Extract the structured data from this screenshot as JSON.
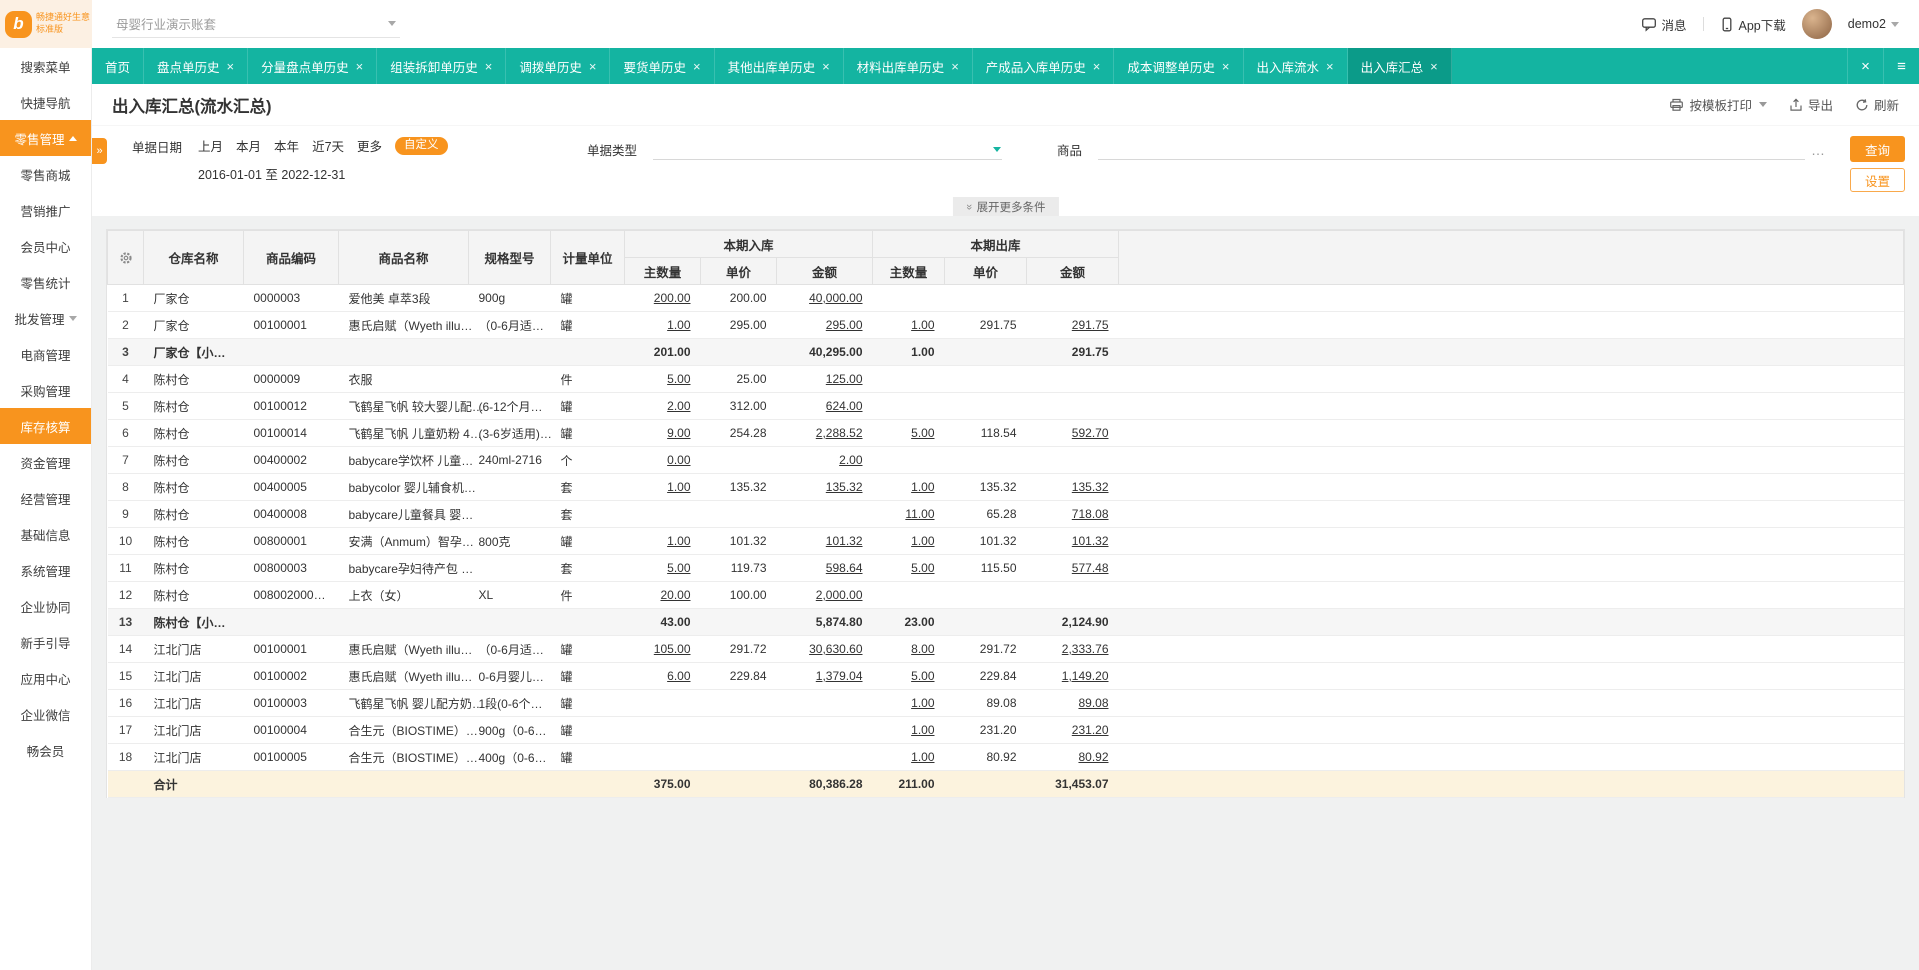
{
  "topbar": {
    "logo_glyph": "b",
    "logo_title": "畅捷通好生意",
    "logo_edition": "标准版",
    "account": "母婴行业演示账套",
    "messages": "消息",
    "app_download": "App下载",
    "user": "demo2"
  },
  "tabbar": {
    "close_all_icon": "×",
    "menu_icon": "≡",
    "tabs": [
      {
        "label": "首页",
        "closable": false,
        "active": false
      },
      {
        "label": "盘点单历史",
        "closable": true,
        "active": false
      },
      {
        "label": "分量盘点单历史",
        "closable": true,
        "active": false
      },
      {
        "label": "组装拆卸单历史",
        "closable": true,
        "active": false
      },
      {
        "label": "调拨单历史",
        "closable": true,
        "active": false
      },
      {
        "label": "要货单历史",
        "closable": true,
        "active": false
      },
      {
        "label": "其他出库单历史",
        "closable": true,
        "active": false
      },
      {
        "label": "材料出库单历史",
        "closable": true,
        "active": false
      },
      {
        "label": "产成品入库单历史",
        "closable": true,
        "active": false
      },
      {
        "label": "成本调整单历史",
        "closable": true,
        "active": false
      },
      {
        "label": "出入库流水",
        "closable": true,
        "active": false
      },
      {
        "label": "出入库汇总",
        "closable": true,
        "active": true
      }
    ]
  },
  "sidebar": {
    "items": [
      {
        "label": "搜索菜单",
        "type": "plain"
      },
      {
        "label": "快捷导航",
        "type": "plain"
      },
      {
        "label": "零售管理",
        "type": "group-open"
      },
      {
        "label": "零售商城",
        "type": "sub"
      },
      {
        "label": "营销推广",
        "type": "sub"
      },
      {
        "label": "会员中心",
        "type": "sub"
      },
      {
        "label": "零售统计",
        "type": "sub"
      },
      {
        "label": "批发管理",
        "type": "group-closed"
      },
      {
        "label": "电商管理",
        "type": "plain"
      },
      {
        "label": "采购管理",
        "type": "plain"
      },
      {
        "label": "库存核算",
        "type": "active"
      },
      {
        "label": "资金管理",
        "type": "plain"
      },
      {
        "label": "经营管理",
        "type": "plain"
      },
      {
        "label": "基础信息",
        "type": "plain"
      },
      {
        "label": "系统管理",
        "type": "plain"
      },
      {
        "label": "企业协同",
        "type": "plain"
      },
      {
        "label": "新手引导",
        "type": "plain"
      },
      {
        "label": "应用中心",
        "type": "plain"
      },
      {
        "label": "企业微信",
        "type": "plain"
      },
      {
        "label": "畅会员",
        "type": "plain"
      }
    ]
  },
  "page": {
    "title": "出入库汇总(流水汇总)",
    "actions": {
      "print": "按模板打印",
      "export": "导出",
      "refresh": "刷新"
    }
  },
  "filters": {
    "collapse_icon": "»",
    "date_label": "单据日期",
    "quick_ranges": [
      "上月",
      "本月",
      "本年",
      "近7天",
      "更多"
    ],
    "custom_badge": "自定义",
    "date_range": "2016-01-01 至 2022-12-31",
    "doc_type_label": "单据类型",
    "product_label": "商品",
    "product_more": "…",
    "search_button": "查询",
    "settings_button": "设置",
    "expand_icon": "»",
    "expand_more": "展开更多条件"
  },
  "table": {
    "columns": [
      "仓库名称",
      "商品编码",
      "商品名称",
      "规格型号",
      "计量单位"
    ],
    "group_in": "本期入库",
    "group_out": "本期出库",
    "sub_columns": [
      "主数量",
      "单价",
      "金额"
    ],
    "rows": [
      {
        "num": "1",
        "warehouse": "厂家仓",
        "code": "0000003",
        "name": "爱他美 卓萃3段",
        "spec": "900g",
        "unit": "罐",
        "in_qty": "200.00",
        "in_price": "200.00",
        "in_amt": "40,000.00",
        "out_qty": "",
        "out_price": "",
        "out_amt": "",
        "type": "data"
      },
      {
        "num": "2",
        "warehouse": "厂家仓",
        "code": "00100001",
        "name": "惠氏启赋（Wyeth illu…",
        "spec": "（0-6月适…",
        "unit": "罐",
        "in_qty": "1.00",
        "in_price": "295.00",
        "in_amt": "295.00",
        "out_qty": "1.00",
        "out_price": "291.75",
        "out_amt": "291.75",
        "type": "data"
      },
      {
        "num": "3",
        "warehouse": "厂家仓【小…",
        "code": "",
        "name": "",
        "spec": "",
        "unit": "",
        "in_qty": "201.00",
        "in_price": "",
        "in_amt": "40,295.00",
        "out_qty": "1.00",
        "out_price": "",
        "out_amt": "291.75",
        "type": "subtotal"
      },
      {
        "num": "4",
        "warehouse": "陈村仓",
        "code": "0000009",
        "name": "衣服",
        "spec": "",
        "unit": "件",
        "in_qty": "5.00",
        "in_price": "25.00",
        "in_amt": "125.00",
        "out_qty": "",
        "out_price": "",
        "out_amt": "",
        "type": "data"
      },
      {
        "num": "5",
        "warehouse": "陈村仓",
        "code": "00100012",
        "name": "飞鹤星飞帆 较大婴儿配…",
        "spec": "(6-12个月…",
        "unit": "罐",
        "in_qty": "2.00",
        "in_price": "312.00",
        "in_amt": "624.00",
        "out_qty": "",
        "out_price": "",
        "out_amt": "",
        "type": "data"
      },
      {
        "num": "6",
        "warehouse": "陈村仓",
        "code": "00100014",
        "name": "飞鹤星飞帆 儿童奶粉 4…",
        "spec": "(3-6岁适用)…",
        "unit": "罐",
        "in_qty": "9.00",
        "in_price": "254.28",
        "in_amt": "2,288.52",
        "out_qty": "5.00",
        "out_price": "118.54",
        "out_amt": "592.70",
        "type": "data"
      },
      {
        "num": "7",
        "warehouse": "陈村仓",
        "code": "00400002",
        "name": "babycare学饮杯 儿童…",
        "spec": "240ml-2716",
        "unit": "个",
        "in_qty": "0.00",
        "in_price": "",
        "in_amt": "2.00",
        "out_qty": "",
        "out_price": "",
        "out_amt": "",
        "type": "data"
      },
      {
        "num": "8",
        "warehouse": "陈村仓",
        "code": "00400005",
        "name": "babycolor 婴儿辅食机…",
        "spec": "",
        "unit": "套",
        "in_qty": "1.00",
        "in_price": "135.32",
        "in_amt": "135.32",
        "out_qty": "1.00",
        "out_price": "135.32",
        "out_amt": "135.32",
        "type": "data"
      },
      {
        "num": "9",
        "warehouse": "陈村仓",
        "code": "00400008",
        "name": "babycare儿童餐具 婴…",
        "spec": "",
        "unit": "套",
        "in_qty": "",
        "in_price": "",
        "in_amt": "",
        "out_qty": "11.00",
        "out_price": "65.28",
        "out_amt": "718.08",
        "type": "data"
      },
      {
        "num": "10",
        "warehouse": "陈村仓",
        "code": "00800001",
        "name": "安满（Anmum）智孕…",
        "spec": "800克",
        "unit": "罐",
        "in_qty": "1.00",
        "in_price": "101.32",
        "in_amt": "101.32",
        "out_qty": "1.00",
        "out_price": "101.32",
        "out_amt": "101.32",
        "type": "data"
      },
      {
        "num": "11",
        "warehouse": "陈村仓",
        "code": "00800003",
        "name": "babycare孕妇待产包 …",
        "spec": "",
        "unit": "套",
        "in_qty": "5.00",
        "in_price": "119.73",
        "in_amt": "598.64",
        "out_qty": "5.00",
        "out_price": "115.50",
        "out_amt": "577.48",
        "type": "data"
      },
      {
        "num": "12",
        "warehouse": "陈村仓",
        "code": "008002000…",
        "name": "上衣（女）",
        "spec": "XL",
        "unit": "件",
        "in_qty": "20.00",
        "in_price": "100.00",
        "in_amt": "2,000.00",
        "out_qty": "",
        "out_price": "",
        "out_amt": "",
        "type": "data"
      },
      {
        "num": "13",
        "warehouse": "陈村仓【小…",
        "code": "",
        "name": "",
        "spec": "",
        "unit": "",
        "in_qty": "43.00",
        "in_price": "",
        "in_amt": "5,874.80",
        "out_qty": "23.00",
        "out_price": "",
        "out_amt": "2,124.90",
        "type": "subtotal"
      },
      {
        "num": "14",
        "warehouse": "江北门店",
        "code": "00100001",
        "name": "惠氏启赋（Wyeth illu…",
        "spec": "（0-6月适…",
        "unit": "罐",
        "in_qty": "105.00",
        "in_price": "291.72",
        "in_amt": "30,630.60",
        "out_qty": "8.00",
        "out_price": "291.72",
        "out_amt": "2,333.76",
        "type": "data"
      },
      {
        "num": "15",
        "warehouse": "江北门店",
        "code": "00100002",
        "name": "惠氏启赋（Wyeth illu…",
        "spec": "0-6月婴儿…",
        "unit": "罐",
        "in_qty": "6.00",
        "in_price": "229.84",
        "in_amt": "1,379.04",
        "out_qty": "5.00",
        "out_price": "229.84",
        "out_amt": "1,149.20",
        "type": "data"
      },
      {
        "num": "16",
        "warehouse": "江北门店",
        "code": "00100003",
        "name": "飞鹤星飞帆 婴儿配方奶…",
        "spec": "1段(0-6个…",
        "unit": "罐",
        "in_qty": "",
        "in_price": "",
        "in_amt": "",
        "out_qty": "1.00",
        "out_price": "89.08",
        "out_amt": "89.08",
        "type": "data"
      },
      {
        "num": "17",
        "warehouse": "江北门店",
        "code": "00100004",
        "name": "合生元（BIOSTIME）…",
        "spec": "900g（0-6…",
        "unit": "罐",
        "in_qty": "",
        "in_price": "",
        "in_amt": "",
        "out_qty": "1.00",
        "out_price": "231.20",
        "out_amt": "231.20",
        "type": "data"
      },
      {
        "num": "18",
        "warehouse": "江北门店",
        "code": "00100005",
        "name": "合生元（BIOSTIME）…",
        "spec": "400g（0-6…",
        "unit": "罐",
        "in_qty": "",
        "in_price": "",
        "in_amt": "",
        "out_qty": "1.00",
        "out_price": "80.92",
        "out_amt": "80.92",
        "type": "data"
      },
      {
        "num": "",
        "warehouse": "合计",
        "code": "",
        "name": "",
        "spec": "",
        "unit": "",
        "in_qty": "375.00",
        "in_price": "",
        "in_amt": "80,386.28",
        "out_qty": "211.00",
        "out_price": "",
        "out_amt": "31,453.07",
        "type": "total"
      }
    ]
  },
  "colors": {
    "teal": "#14b4a1",
    "teal_dark": "#0b9b89",
    "orange": "#f8941e",
    "total_row_bg": "#fcf3de"
  }
}
